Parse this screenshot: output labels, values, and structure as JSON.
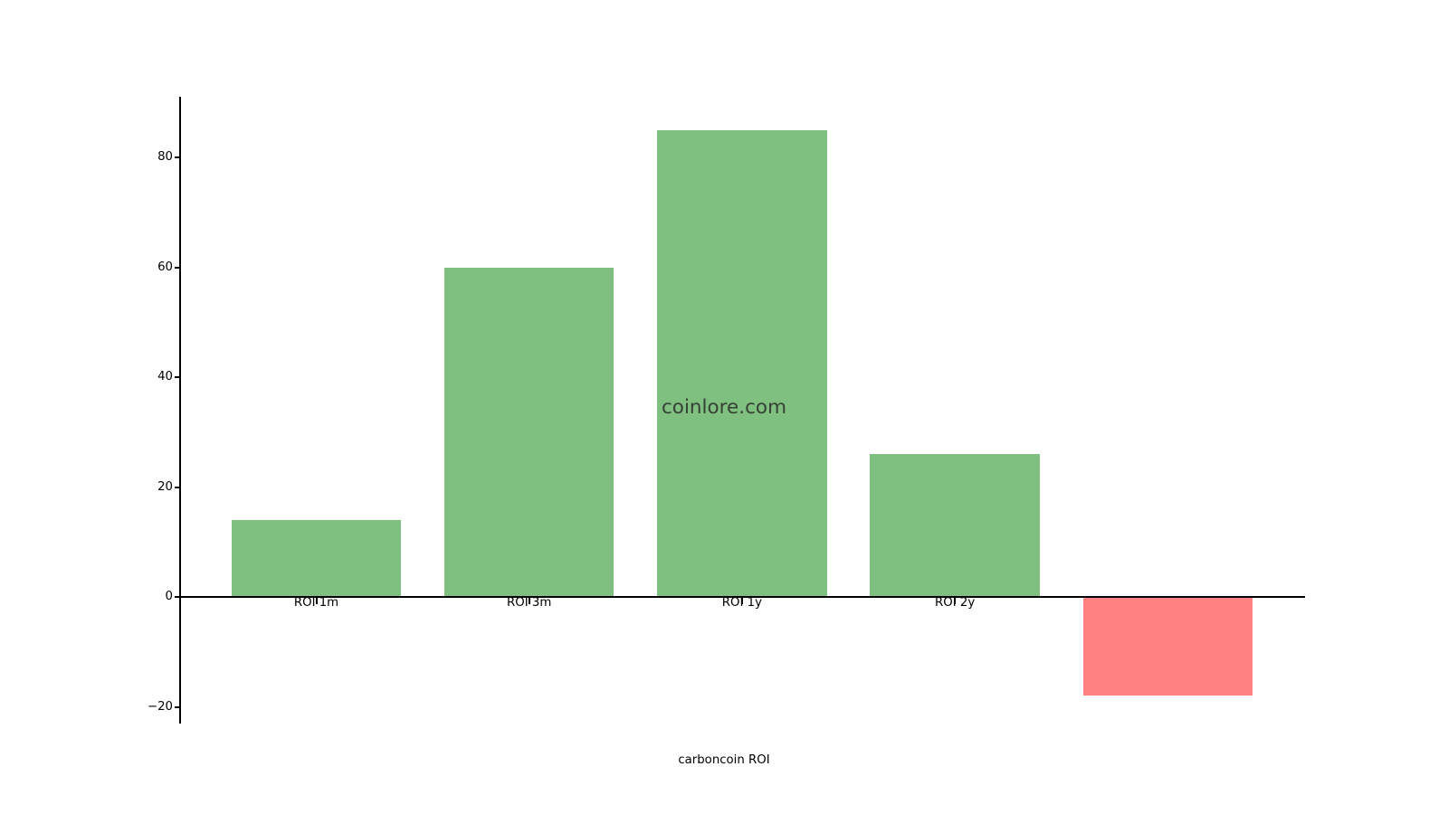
{
  "page": {
    "background_color": "#ffffff"
  },
  "chart_data": {
    "type": "bar",
    "title": "carboncoin ROI",
    "title_position": "bottom-center",
    "watermark": "coinlore.com",
    "watermark_position": "center-of-plot",
    "categories": [
      "ROI 1m",
      "ROI 3m",
      "ROI 1y",
      "ROI 2y",
      ""
    ],
    "values": [
      14,
      60,
      85,
      26,
      -18
    ],
    "bar_colors": [
      "#7fbf7f",
      "#7fbf7f",
      "#7fbf7f",
      "#7fbf7f",
      "#ff8080"
    ],
    "positive_color": "#7fbf7f",
    "negative_color": "#ff8080",
    "y_ticks": [
      80,
      60,
      40,
      20,
      0,
      -20
    ],
    "y_tick_labels": [
      "80",
      "60",
      "40",
      "20",
      "0",
      "−20"
    ],
    "ylim": [
      -23,
      91
    ],
    "xlabel": "",
    "ylabel": "",
    "grid": false,
    "legend": false,
    "axis_color": "#000000",
    "text_color": "#000000",
    "x_axis_at_zero": true,
    "unlabeled_bars": [
      4
    ]
  }
}
